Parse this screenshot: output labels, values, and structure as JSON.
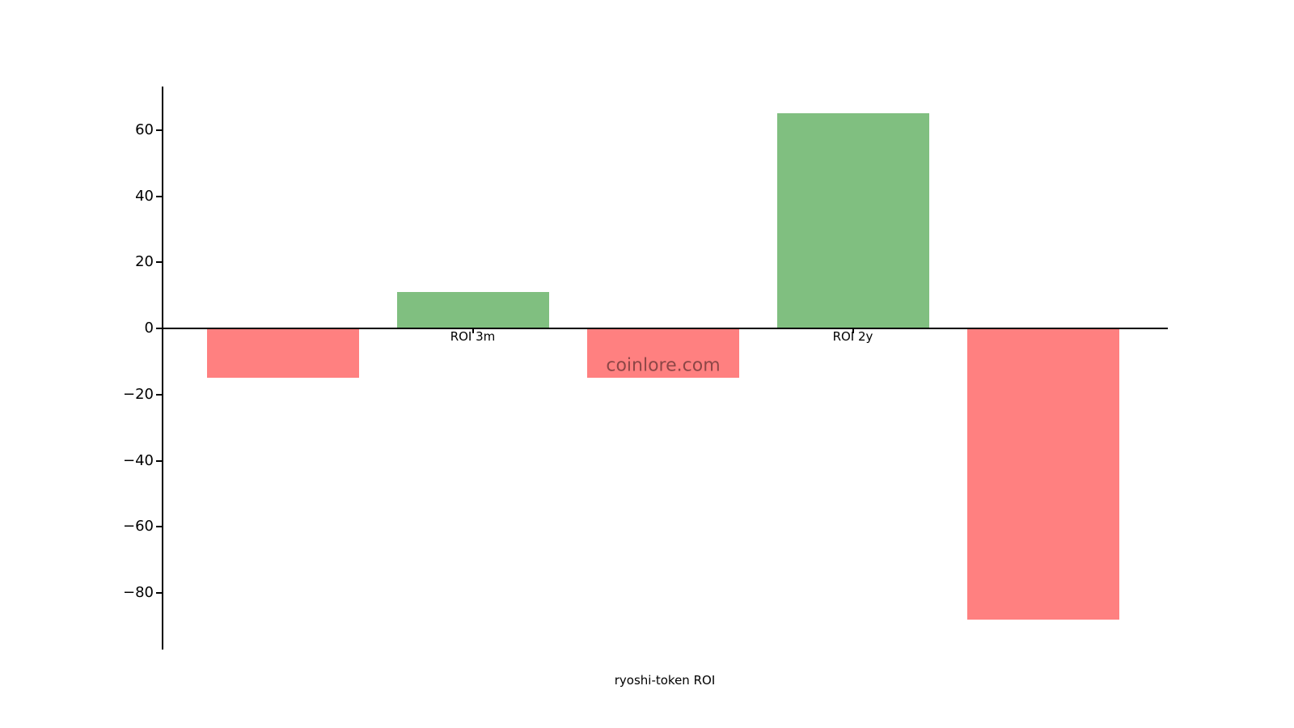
{
  "chart_data": {
    "type": "bar",
    "title": "ryoshi-token ROI",
    "xlabel": "ryoshi-token ROI",
    "ylabel": "",
    "watermark": "coinlore.com",
    "categories": [
      "",
      "ROI 3m",
      "",
      "ROI 2y",
      ""
    ],
    "values": [
      -15,
      11,
      -15,
      65,
      -88
    ],
    "bar_colors": [
      "#ff8080",
      "#80bf80",
      "#ff8080",
      "#80bf80",
      "#ff8080"
    ],
    "positive_color": "#80bf80",
    "negative_color": "#ff8080",
    "axis_color": "#000000",
    "watermark_color": "rgba(0,0,0,0.45)",
    "ytick_values": [
      60,
      40,
      20,
      0,
      -20,
      -40,
      -60,
      -80
    ],
    "ytick_labels": [
      "60",
      "40",
      "20",
      "0",
      "−20",
      "−40",
      "−60",
      "−80"
    ],
    "ylim": [
      -96.5,
      73.5
    ],
    "grid": "off",
    "legend": "none",
    "note_hidden_labels": "x tick labels of bars 1, 3 and 5 are covered by the red bars; only 'ROI 3m' and 'ROI 2y' are visible"
  }
}
